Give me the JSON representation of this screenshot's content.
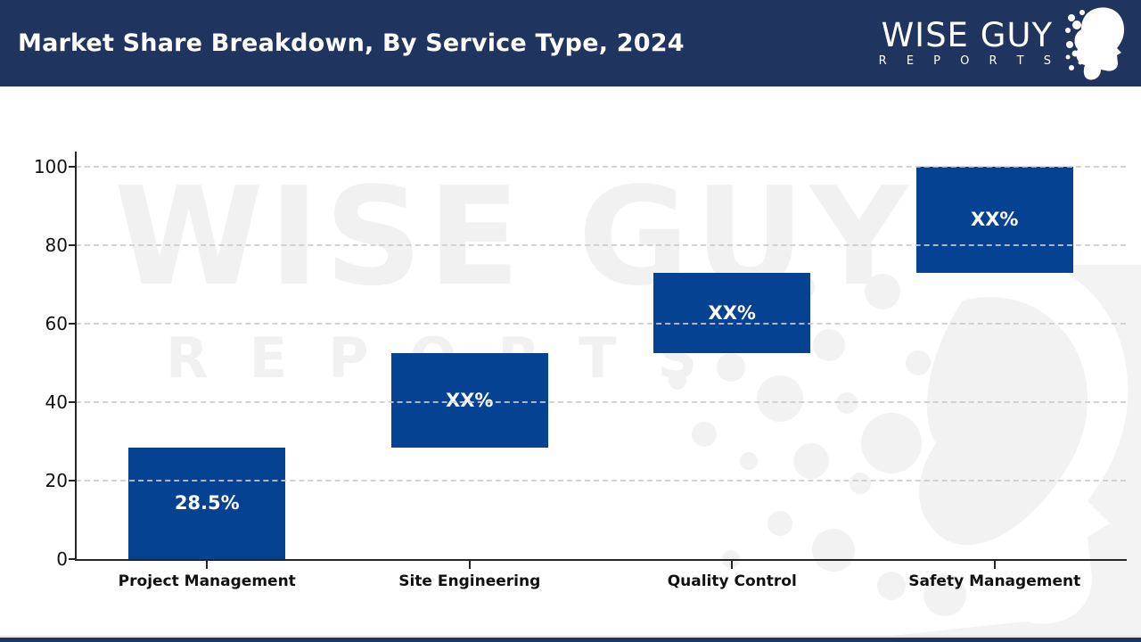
{
  "header": {
    "title": "Market Share Breakdown, By Service Type, 2024",
    "logo": {
      "name": "WISE GUY",
      "subtitle": "R E P O R T S"
    }
  },
  "watermark": {
    "line1": "WISE GUY",
    "line2": "REPORTS"
  },
  "colors": {
    "header_bg": "#1f345e",
    "bar": "#054292",
    "grid": "#cccccc",
    "axis": "#262626",
    "bar_label_text": "#ffffff",
    "tick_text": "#111111",
    "watermark": "#f1f1f1",
    "footer_accent": "#1f345e"
  },
  "chart_data": {
    "type": "bar",
    "subtype": "waterfall",
    "title": "Market Share Breakdown, By Service Type, 2024",
    "categories": [
      "Project Management",
      "Site Engineering",
      "Quality Control",
      "Safety Management"
    ],
    "segments": [
      {
        "category": "Project Management",
        "start": 0,
        "end": 28.5,
        "label": "28.5%"
      },
      {
        "category": "Site Engineering",
        "start": 28.5,
        "end": 52.5,
        "label": "XX%"
      },
      {
        "category": "Quality Control",
        "start": 52.5,
        "end": 73,
        "label": "XX%"
      },
      {
        "category": "Safety Management",
        "start": 73,
        "end": 100,
        "label": "XX%"
      }
    ],
    "xlabel": "",
    "ylabel": "",
    "ylim": [
      0,
      100
    ],
    "yticks": [
      0,
      20,
      40,
      60,
      80,
      100
    ],
    "grid": "horizontal-dashed",
    "legend": "none"
  }
}
